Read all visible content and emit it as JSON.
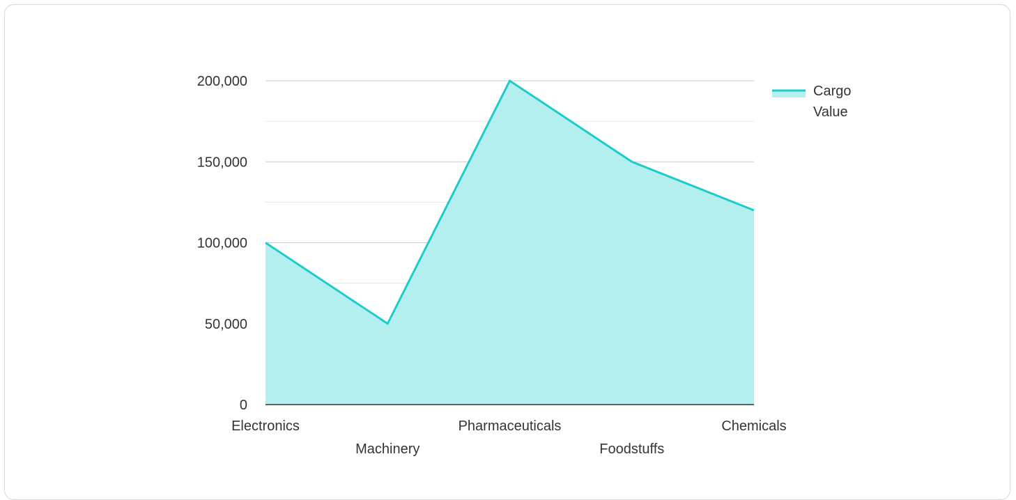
{
  "chart_data": {
    "type": "area",
    "categories": [
      "Electronics",
      "Machinery",
      "Pharmaceuticals",
      "Foodstuffs",
      "Chemicals"
    ],
    "series": [
      {
        "name": "Cargo Value",
        "values": [
          100000,
          50000,
          200000,
          150000,
          120000
        ]
      }
    ],
    "ylim": [
      0,
      200000
    ],
    "y_ticks": [
      "0",
      "50,000",
      "100,000",
      "150,000",
      "200,000"
    ],
    "grid": true,
    "legend": {
      "position": "right",
      "lines": [
        "Cargo",
        "Value"
      ]
    },
    "colors": {
      "line": "#1ecbcb",
      "fill": "#b2efee",
      "grid": "#cccccc",
      "minor_grid": "#e6e6e6",
      "axis": "#333333"
    }
  }
}
